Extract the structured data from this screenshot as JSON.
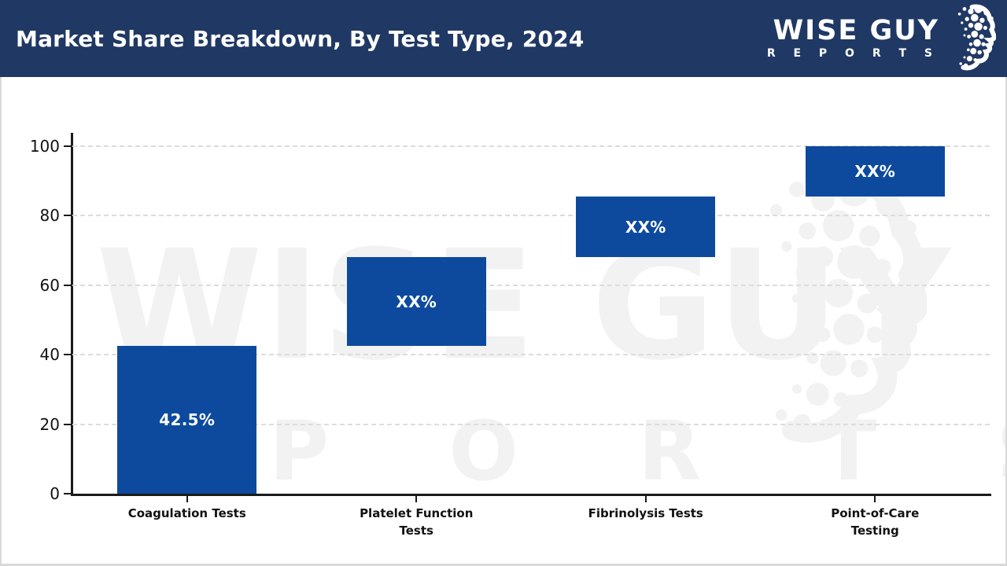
{
  "header": {
    "title": "Market Share Breakdown, By Test Type, 2024",
    "logo": {
      "line1": "WISE GUY",
      "line2": "R E P O R T S"
    }
  },
  "watermark": {
    "line1": "WISE GUY",
    "line2": "P O R T S"
  },
  "chart_data": {
    "type": "bar",
    "subtype": "waterfall-floating-bars",
    "title": "Market Share Breakdown, By Test Type, 2024",
    "categories": [
      "Coagulation Tests",
      "Platelet Function\nTests",
      "Fibrinolysis Tests",
      "Point-of-Care\nTesting"
    ],
    "bars": [
      {
        "category": "Coagulation Tests",
        "start": 0,
        "end": 42.5,
        "label": "42.5%"
      },
      {
        "category": "Platelet Function Tests",
        "start": 42.5,
        "end": 68,
        "label": "XX%"
      },
      {
        "category": "Fibrinolysis Tests",
        "start": 68,
        "end": 85.5,
        "label": "XX%"
      },
      {
        "category": "Point-of-Care Testing",
        "start": 85.5,
        "end": 100,
        "label": "XX%"
      }
    ],
    "xlabel": "",
    "ylabel": "",
    "ylim": [
      0,
      100
    ],
    "yticks": [
      0,
      20,
      40,
      60,
      80,
      100
    ],
    "grid": "horizontal-dashed",
    "legend": "none",
    "bar_color": "#0d4a9e",
    "bar_label_color": "#ffffff"
  },
  "colors": {
    "header_bg": "#203864",
    "canvas_bg": "#ffffff",
    "border": "#d9d9d9",
    "grid": "#dcdcdc",
    "axis": "#1a1a1a",
    "watermark": "#f2f2f2"
  }
}
